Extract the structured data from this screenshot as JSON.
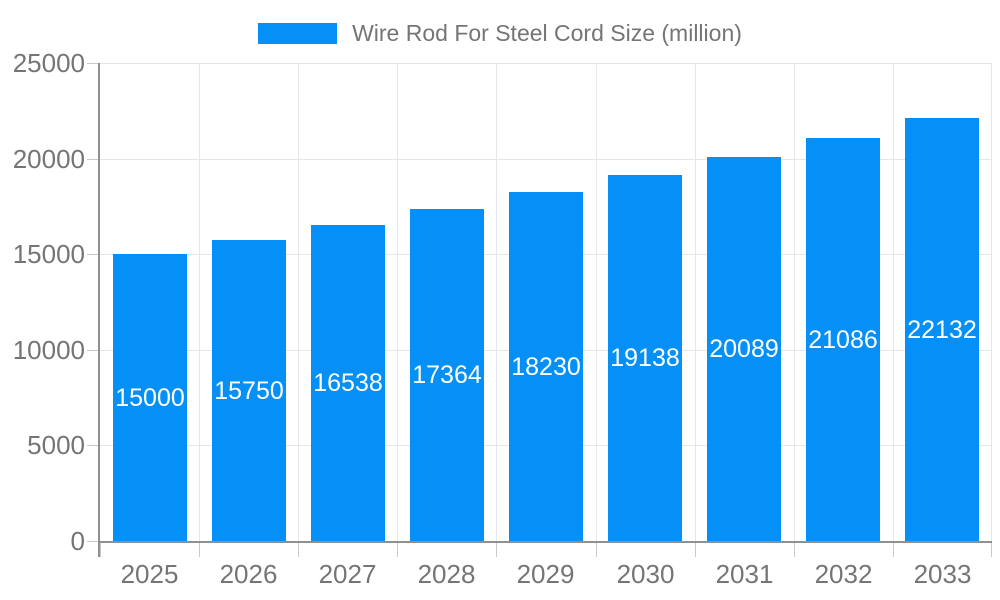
{
  "legend": {
    "label": "Wire Rod For Steel Cord Size (million)",
    "swatch_color": "#0590f8"
  },
  "chart_data": {
    "type": "bar",
    "title": "Wire Rod For Steel Cord Size (million)",
    "categories": [
      "2025",
      "2026",
      "2027",
      "2028",
      "2029",
      "2030",
      "2031",
      "2032",
      "2033"
    ],
    "values": [
      15000,
      15750,
      16538,
      17364,
      18230,
      19138,
      20089,
      21086,
      22132
    ],
    "value_labels": [
      "15000",
      "15750",
      "16538",
      "17364",
      "18230",
      "19138",
      "20089",
      "21086",
      "22132"
    ],
    "xlabel": "",
    "ylabel": "",
    "ylim": [
      0,
      25000
    ],
    "yticks": [
      0,
      5000,
      10000,
      15000,
      20000,
      25000
    ],
    "ytick_labels": [
      "0",
      "5000",
      "10000",
      "15000",
      "20000",
      "25000"
    ],
    "grid": true,
    "legend_position": "top-center",
    "bar_color": "#0590f8",
    "value_label_color": "#ffffff",
    "axis_text_color": "#757575",
    "grid_color": "#e6e6e6",
    "tick_color": "#c9c9c9",
    "axis_line_color": "#909090",
    "background_color": "#ffffff"
  }
}
